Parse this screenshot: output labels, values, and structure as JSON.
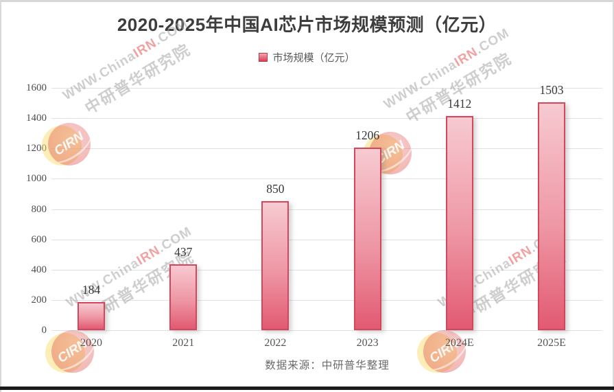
{
  "title": "2020-2025年中国AI芯片市场规模预测（亿元）",
  "legend": {
    "label": "市场规模（亿元）",
    "swatch_color": "#d94055"
  },
  "source_note": "数据来源：中研普华整理",
  "chart_data": {
    "type": "bar",
    "title": "2020-2025年中国AI芯片市场规模预测（亿元）",
    "series_name": "市场规模（亿元）",
    "categories": [
      "2020",
      "2021",
      "2022",
      "2023",
      "2024E",
      "2025E"
    ],
    "values": [
      184,
      437,
      850,
      1206,
      1412,
      1503
    ],
    "yticks": [
      0,
      200,
      400,
      600,
      800,
      1000,
      1200,
      1400,
      1600
    ],
    "ylim": [
      0,
      1600
    ],
    "xlabel": "",
    "ylabel": "",
    "grid": true,
    "legend_position": "top",
    "bar_color_top": "#f7cad1",
    "bar_color_bottom": "#e25a72",
    "bar_border_color": "#d4465c",
    "gridline_color": "#e1e1e1"
  },
  "watermark": {
    "logo_text": "CIRN",
    "line1_prefix": "WWW.China",
    "line1_highlight": "IRN",
    "line1_suffix": ".COM",
    "line2": "中研普华研究院",
    "highlight_color": "#e96e6e"
  },
  "frame": {
    "bottom_bar_color": "#1b1b1b",
    "border_color": "#d6d6d6"
  }
}
